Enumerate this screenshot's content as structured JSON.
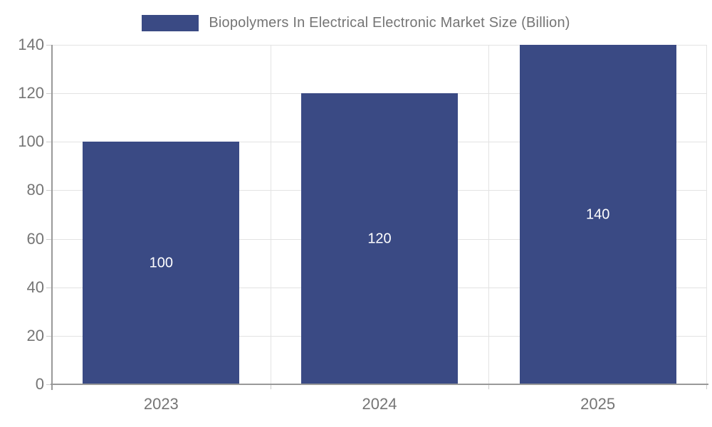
{
  "legend": {
    "label": "Biopolymers In Electrical Electronic Market Size (Billion)"
  },
  "colors": {
    "bar": "#3A4A84",
    "axis_line": "#999999",
    "grid_line": "#e3e3e3",
    "tick_mark": "#cccccc",
    "tick_label": "#757575",
    "value_label": "#ffffff",
    "background": "#ffffff"
  },
  "chart_data": {
    "type": "bar",
    "title": "Biopolymers In Electrical Electronic Market Size (Billion)",
    "categories": [
      "2023",
      "2024",
      "2025"
    ],
    "values": [
      100,
      120,
      140
    ],
    "bar_value_labels": [
      "100",
      "120",
      "140"
    ],
    "xlabel": "",
    "ylabel": "",
    "ylim": [
      0,
      140
    ],
    "yticks": [
      0,
      20,
      40,
      60,
      80,
      100,
      120,
      140
    ],
    "grid": "on",
    "legend_position": "top-center",
    "value_label_position": "center-of-bar"
  }
}
